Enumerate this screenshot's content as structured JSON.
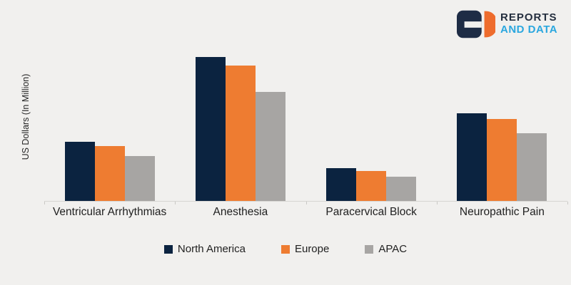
{
  "background_color": "#f1f0ee",
  "logo": {
    "line1": "REPORTS",
    "line2": "AND DATA",
    "line1_color": "#242e3e",
    "line2_color": "#2aa7df",
    "monogram_r_color": "#1e2c45",
    "monogram_d_color": "#ee6c2d"
  },
  "chart_data": {
    "type": "bar",
    "title": "",
    "xlabel": "",
    "ylabel": "US Dollars (In Million)",
    "categories": [
      "Ventricular Arrhythmias",
      "Anesthesia",
      "Paracervical Block",
      "Neuropathic Pain"
    ],
    "series": [
      {
        "name": "North America",
        "color": "#0b2340",
        "values": [
          41,
          100,
          23,
          61
        ]
      },
      {
        "name": "Europe",
        "color": "#ee7c31",
        "values": [
          38,
          94,
          21,
          57
        ]
      },
      {
        "name": "APAC",
        "color": "#a7a5a3",
        "values": [
          31,
          76,
          17,
          47
        ]
      }
    ],
    "ylim": [
      0,
      105
    ],
    "y_tick_labels_visible": false,
    "grid": false,
    "legend_position": "bottom"
  }
}
